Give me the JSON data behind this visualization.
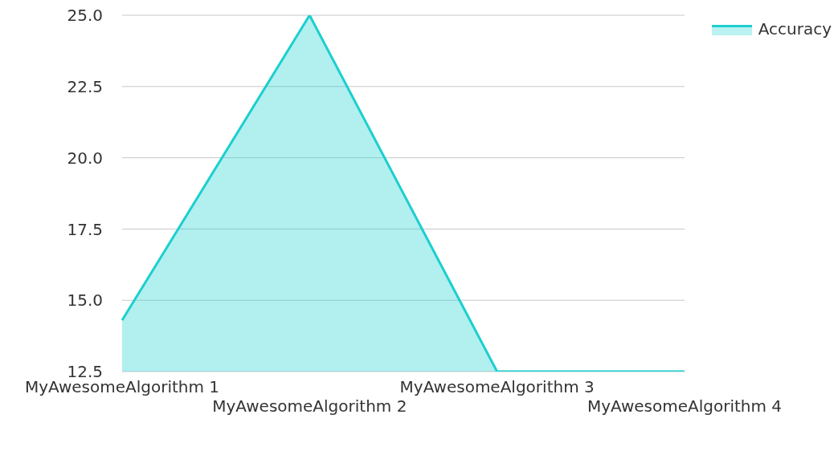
{
  "chart_data": {
    "type": "area",
    "categories": [
      "MyAwesomeAlgorithm 1",
      "MyAwesomeAlgorithm 2",
      "MyAwesomeAlgorithm 3",
      "MyAwesomeAlgorithm 4"
    ],
    "series": [
      {
        "name": "Accuracy",
        "color": "#1ccfcf",
        "values": [
          14.3,
          25,
          12.5,
          12.5
        ]
      }
    ],
    "ylim": [
      12.5,
      25
    ],
    "yticks": [
      {
        "value": 12.5,
        "label": "12.5"
      },
      {
        "value": 15,
        "label": "15.0"
      },
      {
        "value": 17.5,
        "label": "17.5"
      },
      {
        "value": 20,
        "label": "20.0"
      },
      {
        "value": 22.5,
        "label": "22.5"
      },
      {
        "value": 25,
        "label": "25.0"
      }
    ],
    "grid": "y",
    "legend": "top right",
    "marker": "none"
  }
}
